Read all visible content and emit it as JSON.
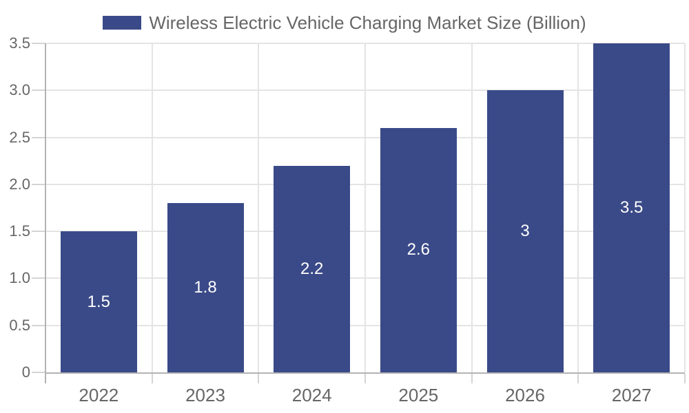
{
  "chart_data": {
    "type": "bar",
    "title": "Wireless Electric Vehicle Charging Market Size (Billion)",
    "legend": {
      "position": "top",
      "label": "Wireless Electric Vehicle Charging Market Size (Billion)"
    },
    "categories": [
      "2022",
      "2023",
      "2024",
      "2025",
      "2026",
      "2027"
    ],
    "series": [
      {
        "name": "Wireless Electric Vehicle Charging Market Size (Billion)",
        "values": [
          1.5,
          1.8,
          2.2,
          2.6,
          3,
          3.5
        ],
        "value_labels": [
          "1.5",
          "1.8",
          "2.2",
          "2.6",
          "3",
          "3.5"
        ]
      }
    ],
    "xlabel": "",
    "ylabel": "",
    "ylim": [
      0,
      3.5
    ],
    "yticks": [
      {
        "value": 0,
        "label": "0"
      },
      {
        "value": 0.5,
        "label": "0.5"
      },
      {
        "value": 1,
        "label": "1.0"
      },
      {
        "value": 1.5,
        "label": "1.5"
      },
      {
        "value": 2,
        "label": "2.0"
      },
      {
        "value": 2.5,
        "label": "2.5"
      },
      {
        "value": 3,
        "label": "3.0"
      },
      {
        "value": 3.5,
        "label": "3.5"
      }
    ],
    "grid": true,
    "value_labels_inside_bars": true
  },
  "colors": {
    "bar_fill": "#3A4A88",
    "bar_value_label": "#FFFFFF",
    "axis_text": "#666666",
    "grid_line": "#E4E4E4",
    "tick_line": "#D4D4D4",
    "axis_line": "#B3B3B3",
    "background": "#FFFFFF"
  }
}
